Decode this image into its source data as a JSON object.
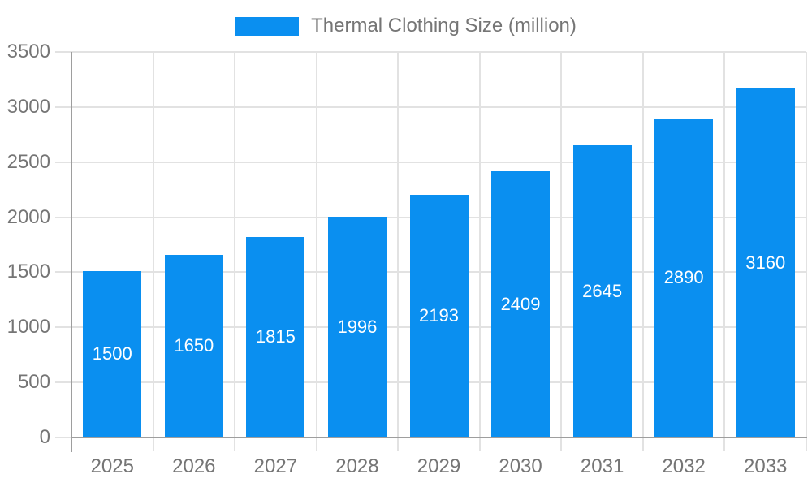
{
  "chart_data": {
    "type": "bar",
    "title": "Thermal Clothing Size (million)",
    "categories": [
      "2025",
      "2026",
      "2027",
      "2028",
      "2029",
      "2030",
      "2031",
      "2032",
      "2033"
    ],
    "values": [
      1500,
      1650,
      1815,
      1996,
      2193,
      2409,
      2645,
      2890,
      3160
    ],
    "series": [
      {
        "name": "Thermal Clothing Size (million)",
        "values": [
          1500,
          1650,
          1815,
          1996,
          2193,
          2409,
          2645,
          2890,
          3160
        ]
      }
    ],
    "xlabel": "",
    "ylabel": "",
    "ylim": [
      0,
      3500
    ],
    "y_ticks": [
      0,
      500,
      1000,
      1500,
      2000,
      2500,
      3000,
      3500
    ],
    "grid": true,
    "legend_position": "top",
    "data_labels": "inside-center",
    "colors": {
      "bar": "#0a8ff0",
      "bar_label_text": "#ffffff",
      "axis_text": "#757575",
      "gridline": "#e2e2e2",
      "axis_line": "#9e9e9e",
      "background": "#ffffff"
    }
  },
  "legend": {
    "label": "Thermal Clothing Size (million)"
  }
}
